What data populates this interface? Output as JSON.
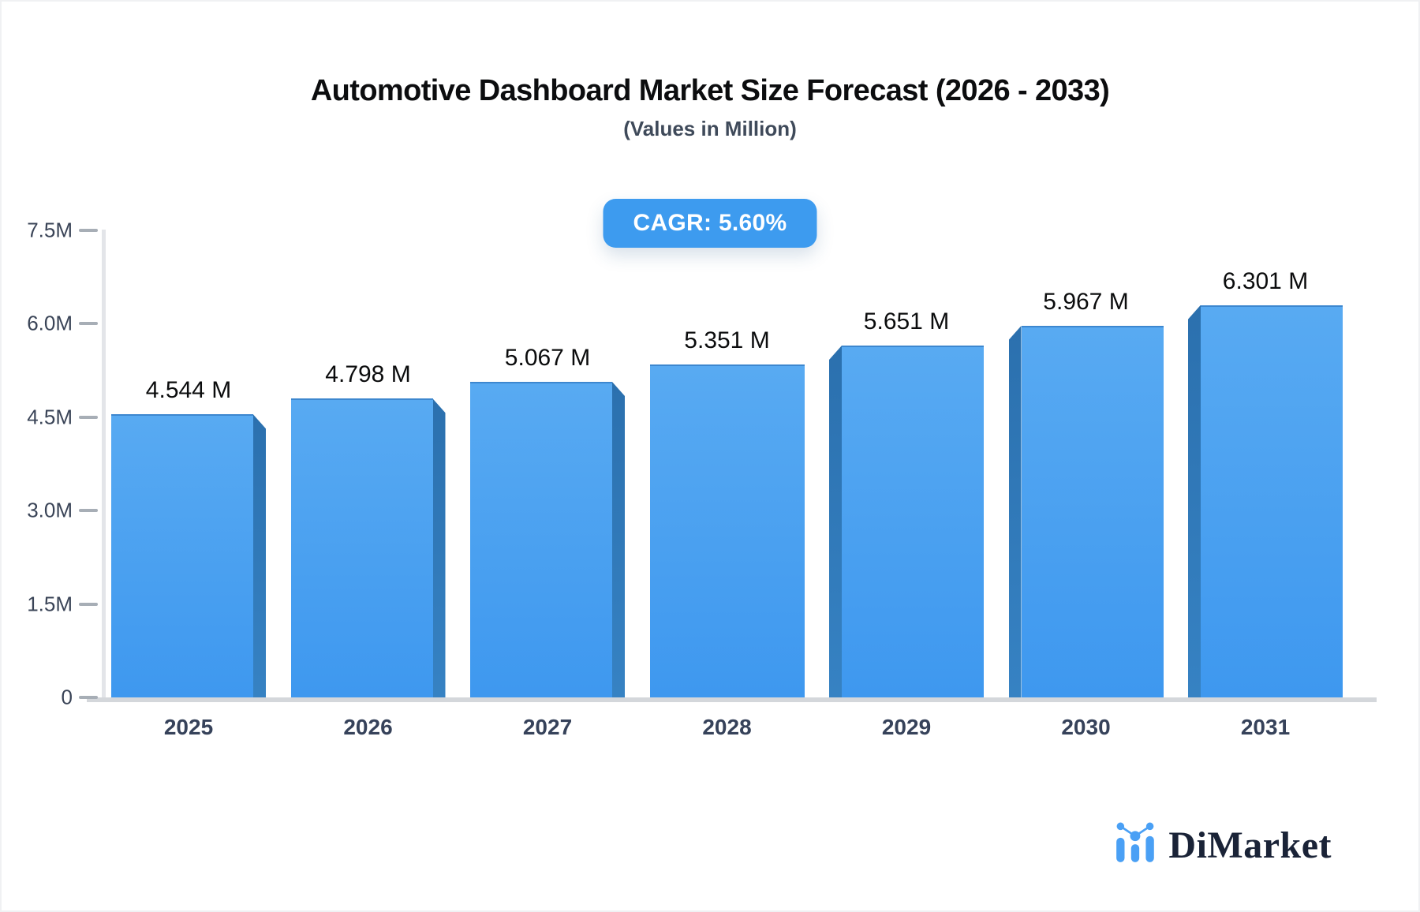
{
  "chart_data": {
    "type": "bar",
    "title": "Automotive Dashboard Market Size Forecast (2026 - 2033)",
    "subtitle": "(Values in Million)",
    "cagr_label": "CAGR: 5.60%",
    "categories": [
      "2025",
      "2026",
      "2027",
      "2028",
      "2029",
      "2030",
      "2031"
    ],
    "values": [
      4.544,
      4.798,
      5.067,
      5.351,
      5.651,
      5.967,
      6.301
    ],
    "value_labels": [
      "4.544 M",
      "4.798 M",
      "5.067 M",
      "5.351 M",
      "5.651 M",
      "5.967 M",
      "6.301 M"
    ],
    "unit": "Million",
    "ylim": [
      0,
      7.5
    ],
    "yticks": [
      {
        "value": 7.5,
        "label": "7.5M"
      },
      {
        "value": 6.0,
        "label": "6.0M"
      },
      {
        "value": 4.5,
        "label": "4.5M"
      },
      {
        "value": 3.0,
        "label": "3.0M"
      },
      {
        "value": 1.5,
        "label": "1.5M"
      },
      {
        "value": 0,
        "label": "0"
      }
    ],
    "grid": false,
    "legend": false,
    "colors": {
      "bar_top": "#58aaf2",
      "bar_bottom": "#3e98ef",
      "bar_side_top": "#2b70ae",
      "bar_side_bottom": "#3682c3",
      "badge_bg": "#3d9bef",
      "axis_line": "#e3e5e9",
      "baseline": "#d4d7db",
      "tick_mark": "#a7aeb6",
      "tick_label": "#3a4457",
      "value_label": "#0b0c0d",
      "title": "#0c0d0f",
      "subtitle": "#3f4a5a"
    }
  },
  "brand": {
    "name": "DiMarket",
    "icon": "mini-bar-chart-icon",
    "navy": "#1a2337",
    "icon_blue": "#4aa0f5"
  }
}
